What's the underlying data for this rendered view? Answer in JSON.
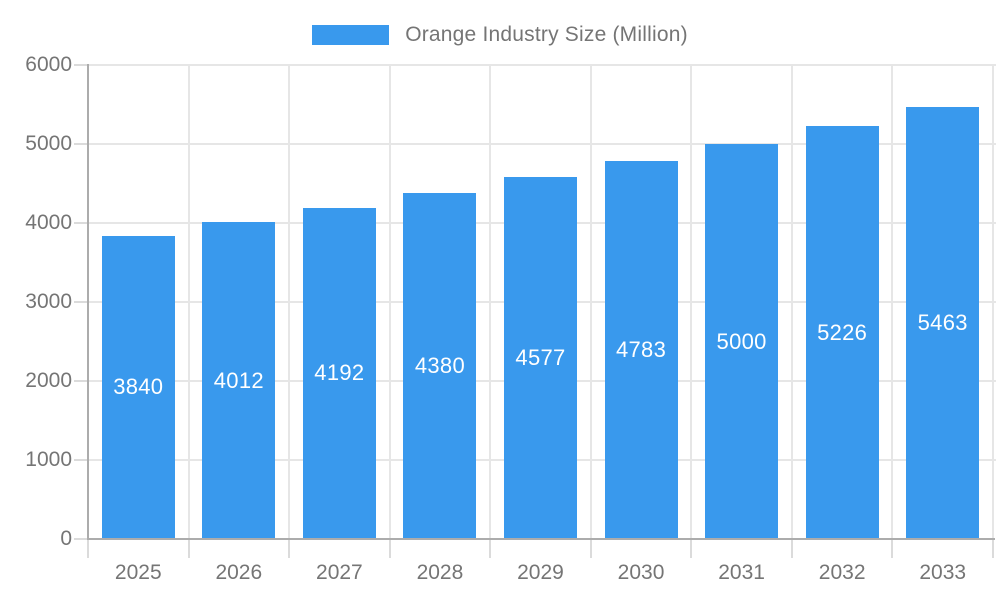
{
  "legend": {
    "label": "Orange Industry Size (Million)"
  },
  "chart_data": {
    "type": "bar",
    "title": "Orange Industry Size (Million)",
    "series_name": "Orange Industry Size (Million)",
    "categories": [
      "2025",
      "2026",
      "2027",
      "2028",
      "2029",
      "2030",
      "2031",
      "2032",
      "2033"
    ],
    "values": [
      3840,
      4012,
      4192,
      4380,
      4577,
      4783,
      5000,
      5226,
      5463
    ],
    "value_labels": [
      "3840",
      "4012",
      "4192",
      "4380",
      "4577",
      "4783",
      "5000",
      "5226",
      "5463"
    ],
    "xlabel": "",
    "ylabel": "",
    "ylim": [
      0,
      6000
    ],
    "yticks": [
      0,
      1000,
      2000,
      3000,
      4000,
      5000,
      6000
    ],
    "ytick_labels": [
      "0",
      "1000",
      "2000",
      "3000",
      "4000",
      "5000",
      "6000"
    ],
    "grid": true,
    "legend_position": "top-center",
    "colors": {
      "bar": "#3999ED",
      "value_text": "#FFFFFF",
      "axis_line": "#ACACAC",
      "gridline": "#E6E6E6",
      "tick": "#DBDBDB",
      "axis_text": "#757575"
    }
  }
}
